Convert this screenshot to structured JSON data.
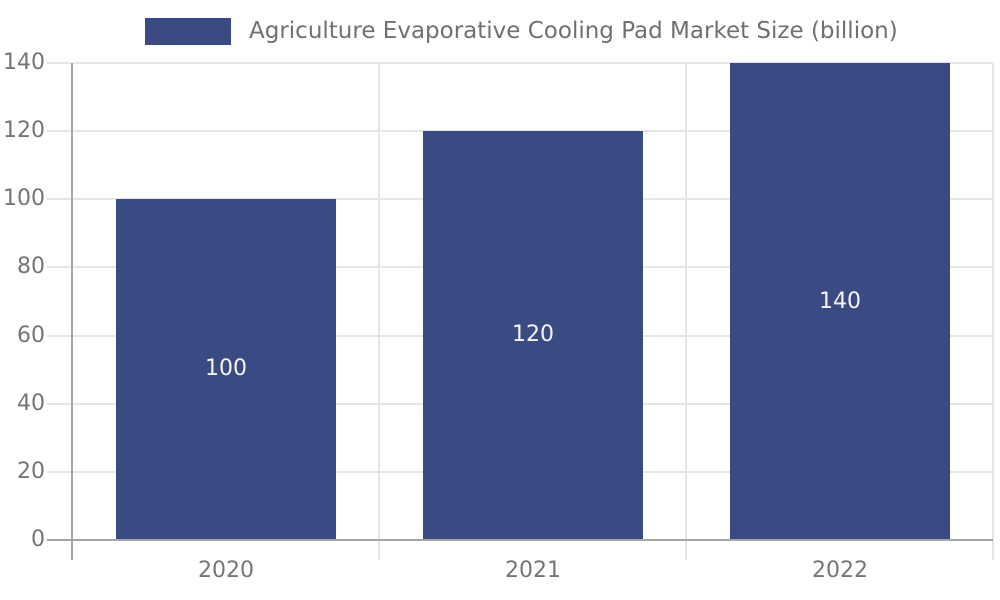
{
  "legend": {
    "label": "Agriculture Evaporative Cooling Pad Market Size (billion)",
    "swatch_color": "#3a4a82"
  },
  "chart_data": {
    "type": "bar",
    "title": "Agriculture Evaporative Cooling Pad Market Size (billion)",
    "categories": [
      "2020",
      "2021",
      "2022"
    ],
    "values": [
      100,
      120,
      140
    ],
    "bar_labels": [
      "100",
      "120",
      "140"
    ],
    "xlabel": "",
    "ylabel": "",
    "ylim": [
      0,
      140
    ],
    "yticks": [
      0,
      20,
      40,
      60,
      80,
      100,
      120,
      140
    ],
    "grid": true,
    "legend_position": "top",
    "colors": {
      "bar": "#3a4a82",
      "grid": "#e6e6e6",
      "axis": "#a6a6a6",
      "tick_label": "#757575",
      "legend_text": "#707070",
      "bar_label": "#f5f5f5"
    }
  }
}
